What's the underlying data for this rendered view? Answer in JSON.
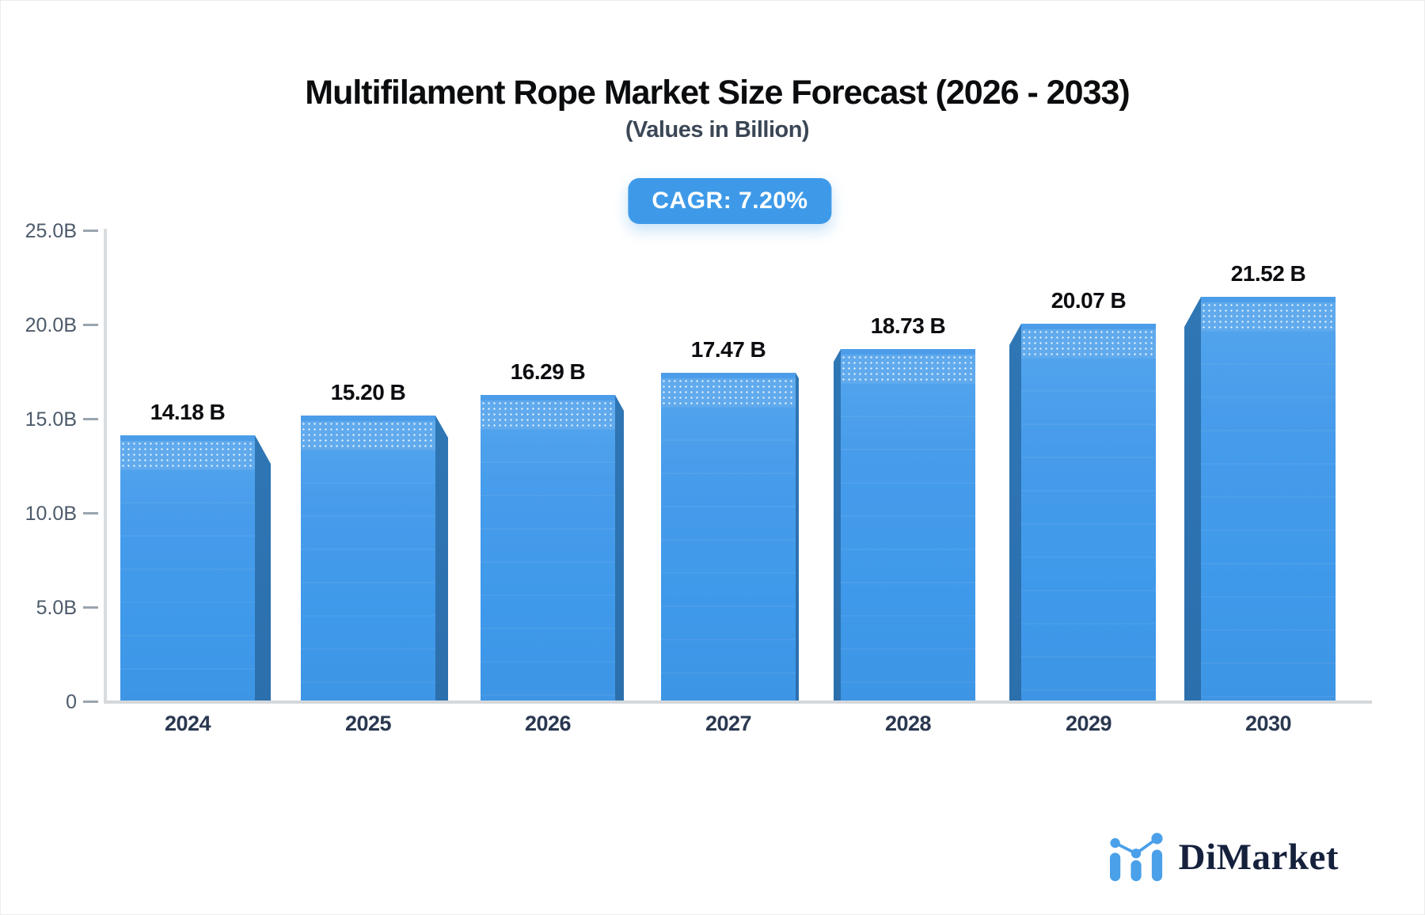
{
  "header": {
    "title": "Multifilament Rope Market Size Forecast (2026 - 2033)",
    "subtitle": "(Values in Billion)",
    "cagr_label": "CAGR: 7.20%"
  },
  "chart_data": {
    "type": "bar",
    "title": "Multifilament Rope Market Size Forecast (2026 - 2033)",
    "subtitle": "(Values in Billion)",
    "cagr_pct": 7.2,
    "categories": [
      "2024",
      "2025",
      "2026",
      "2027",
      "2028",
      "2029",
      "2030"
    ],
    "values": [
      14.18,
      15.2,
      16.29,
      17.47,
      18.73,
      20.07,
      21.52
    ],
    "value_labels": [
      "14.18 B",
      "15.20 B",
      "16.29 B",
      "17.47 B",
      "18.73 B",
      "20.07 B",
      "21.52 B"
    ],
    "unit": "Billion",
    "xlabel": "",
    "ylabel": "",
    "ylim": [
      0,
      25
    ],
    "y_ticks": [
      {
        "value": 25,
        "label": "25.0B"
      },
      {
        "value": 20,
        "label": "20.0B"
      },
      {
        "value": 15,
        "label": "15.0B"
      },
      {
        "value": 10,
        "label": "10.0B"
      },
      {
        "value": 5,
        "label": "5.0B"
      },
      {
        "value": 0,
        "label": "0"
      }
    ],
    "grid": false,
    "legend": false,
    "bar_style": "3d-blue"
  },
  "colors": {
    "bar_face": "#439beb",
    "bar_face_light": "#55a6ec",
    "bar_top_band": "#60aaed",
    "bar_side": "#2e73b2",
    "badge_bg": "#3e9ae9",
    "axis_line": "#d8dcdf",
    "y_label": "#4d5a6a",
    "x_label": "#2a3850",
    "value_label": "#0c0d10",
    "title": "#0b0c0e",
    "subtitle": "#3b4756",
    "logo_text": "#15213c",
    "logo_blue": "#4aa0e9"
  },
  "logo": {
    "text": "DiMarket",
    "icon": "mini-bar-chart-icon"
  }
}
